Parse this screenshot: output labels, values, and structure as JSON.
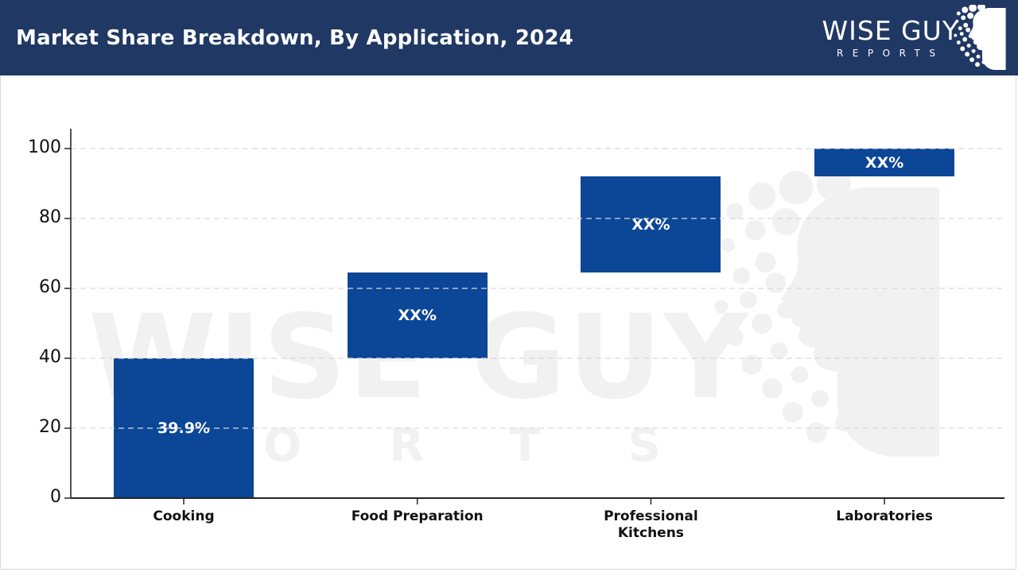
{
  "header": {
    "title": "Market Share Breakdown, By Application, 2024",
    "logo": {
      "line1": "WISE GUY",
      "line2": "REPORTS"
    }
  },
  "watermark": {
    "line1": "WISE GUY",
    "line2": "PORTS"
  },
  "colors": {
    "header_bg": "#203864",
    "bar": "#0b4697",
    "grid": "#dadada",
    "axis": "#262626",
    "watermark": "#f1f1f1",
    "card_border": "#d9d9d9",
    "bar_label": "#ffffff",
    "tick_label": "#111111"
  },
  "chart_data": {
    "type": "bar",
    "subtype": "waterfall-stacked-segments",
    "title": "Market Share Breakdown, By Application, 2024",
    "categories": [
      "Cooking",
      "Food Preparation",
      "Professional\nKitchens",
      "Laboratories"
    ],
    "segments": [
      {
        "label": "Cooking",
        "start": 0,
        "end": 40,
        "value_label": "39.9%"
      },
      {
        "label": "Food Preparation",
        "start": 40,
        "end": 64.5,
        "value_label": "XX%"
      },
      {
        "label": "Professional Kitchens",
        "start": 64.5,
        "end": 92,
        "value_label": "XX%"
      },
      {
        "label": "Laboratories",
        "start": 92,
        "end": 100,
        "value_label": "XX%"
      }
    ],
    "y_ticks": [
      0,
      20,
      40,
      60,
      80,
      100
    ],
    "ylim": [
      0,
      105
    ],
    "xlabel": "",
    "ylabel": "",
    "grid": "dashed-horizontal",
    "legend": "none"
  }
}
